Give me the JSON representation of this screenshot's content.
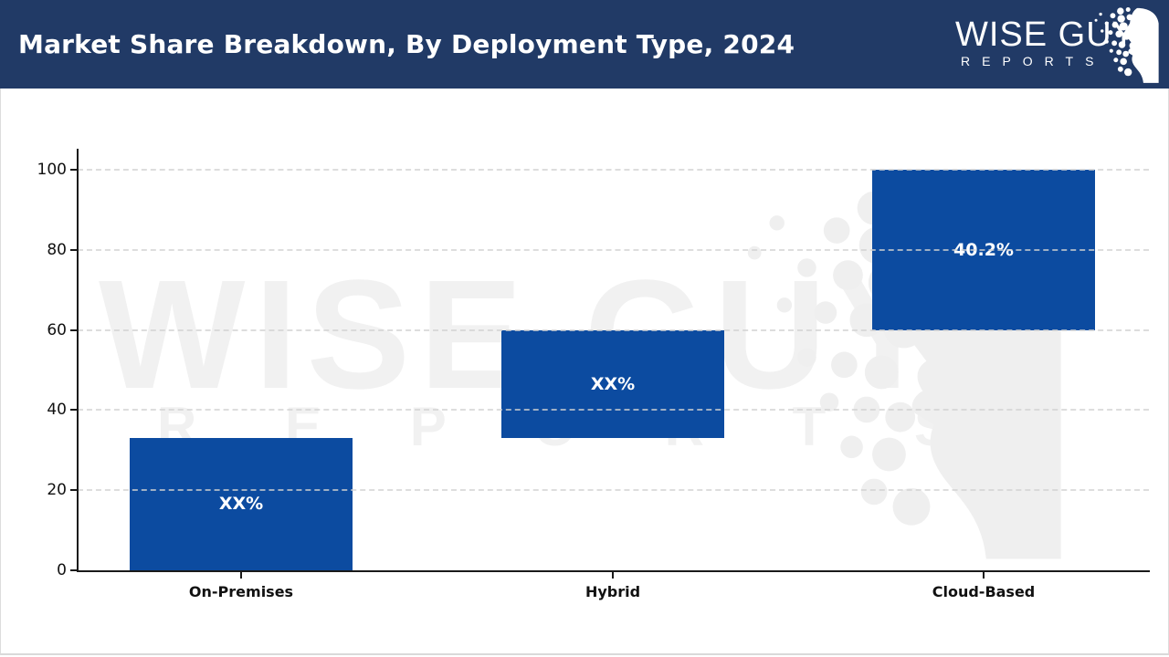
{
  "header": {
    "title": "Market Share Breakdown, By Deployment Type, 2024",
    "logo": {
      "brand_line1": "WISE GUY",
      "brand_line2": "REPORTS"
    }
  },
  "watermark": {
    "line1": "WISE GUY",
    "line2": "R E P O R T S"
  },
  "colors": {
    "header_bg": "#213a66",
    "bar": "#0c4ba0",
    "axis": "#1a1a1a",
    "gridline": "#e0e0e0",
    "watermark": "#f1f1f1"
  },
  "chart_data": {
    "type": "bar",
    "subtype": "waterfall",
    "title": "Market Share Breakdown, By Deployment Type, 2024",
    "xlabel": "",
    "ylabel": "",
    "categories": [
      "On-Premises",
      "Hybrid",
      "Cloud-Based"
    ],
    "bars": [
      {
        "category": "On-Premises",
        "base": 0,
        "end": 33.1,
        "label": "XX%"
      },
      {
        "category": "Hybrid",
        "base": 33.1,
        "end": 59.8,
        "label": "XX%"
      },
      {
        "category": "Cloud-Based",
        "base": 59.8,
        "end": 100,
        "label": "40.2%"
      }
    ],
    "yticks": [
      0,
      20,
      40,
      60,
      80,
      100
    ],
    "ylim": [
      0,
      105
    ],
    "grid": "horizontal-dashed",
    "legend_position": "none",
    "bar_color": "#0c4ba0"
  }
}
